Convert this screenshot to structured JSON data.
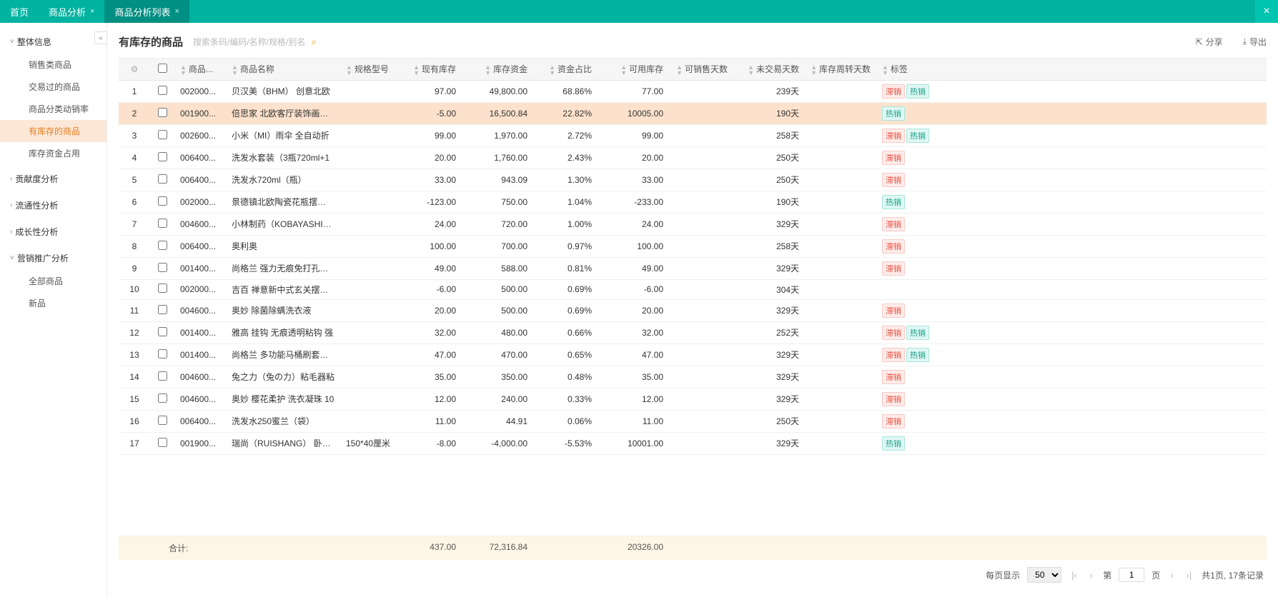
{
  "tabs": {
    "home": "首页",
    "item1": "商品分析",
    "item2": "商品分析列表"
  },
  "sidebar": {
    "groups": [
      {
        "title": "整体信息",
        "open": true,
        "items": [
          "销售类商品",
          "交易过的商品",
          "商品分类动销率",
          "有库存的商品",
          "库存资金占用"
        ],
        "activeIndex": 3
      },
      {
        "title": "贡献度分析",
        "open": false,
        "items": []
      },
      {
        "title": "流通性分析",
        "open": false,
        "items": []
      },
      {
        "title": "成长性分析",
        "open": false,
        "items": []
      },
      {
        "title": "营销推广分析",
        "open": true,
        "items": [
          "全部商品",
          "新品"
        ],
        "activeIndex": -1
      }
    ]
  },
  "header": {
    "title": "有库存的商品",
    "searchPlaceholder": "搜索条码/编码/名称/规格/别名",
    "share": "分享",
    "export": "导出"
  },
  "columns": [
    "",
    "",
    "商品...",
    "商品名称",
    "规格型号",
    "现有库存",
    "库存资金",
    "资金占比",
    "可用库存",
    "可销售天数",
    "未交易天数",
    "库存周转天数",
    "标签"
  ],
  "rows": [
    {
      "idx": 1,
      "code": "002000...",
      "name": "贝汉美（BHM） 创意北欧",
      "spec": "",
      "stock": "97.00",
      "fund": "49,800.00",
      "ratio": "68.86%",
      "avail": "77.00",
      "sellDays": "",
      "noTrade": "239天",
      "turn": "",
      "tags": [
        "滞销",
        "热销"
      ],
      "hl": false
    },
    {
      "idx": 2,
      "code": "001900...",
      "name": "倍思家 北欧客厅装饰画卧室",
      "spec": "",
      "stock": "-5.00",
      "fund": "16,500.84",
      "ratio": "22.82%",
      "avail": "10005.00",
      "sellDays": "",
      "noTrade": "190天",
      "turn": "",
      "tags": [
        "热销"
      ],
      "hl": true
    },
    {
      "idx": 3,
      "code": "002600...",
      "name": "小米（MI）雨伞 全自动折",
      "spec": "",
      "stock": "99.00",
      "fund": "1,970.00",
      "ratio": "2.72%",
      "avail": "99.00",
      "sellDays": "",
      "noTrade": "258天",
      "turn": "",
      "tags": [
        "滞销",
        "热销"
      ],
      "hl": false
    },
    {
      "idx": 4,
      "code": "006400...",
      "name": "洗发水套装（3瓶720ml+1",
      "spec": "",
      "stock": "20.00",
      "fund": "1,760.00",
      "ratio": "2.43%",
      "avail": "20.00",
      "sellDays": "",
      "noTrade": "250天",
      "turn": "",
      "tags": [
        "滞销"
      ],
      "hl": false
    },
    {
      "idx": 5,
      "code": "006400...",
      "name": "洗发水720ml（瓶）",
      "spec": "",
      "stock": "33.00",
      "fund": "943.09",
      "ratio": "1.30%",
      "avail": "33.00",
      "sellDays": "",
      "noTrade": "250天",
      "turn": "",
      "tags": [
        "滞销"
      ],
      "hl": false
    },
    {
      "idx": 6,
      "code": "002000...",
      "name": "景德镇北欧陶瓷花瓶摆件 优",
      "spec": "",
      "stock": "-123.00",
      "fund": "750.00",
      "ratio": "1.04%",
      "avail": "-233.00",
      "sellDays": "",
      "noTrade": "190天",
      "turn": "",
      "tags": [
        "热销"
      ],
      "hl": false
    },
    {
      "idx": 7,
      "code": "004600...",
      "name": "小林制药（KOBAYASHI）E",
      "spec": "",
      "stock": "24.00",
      "fund": "720.00",
      "ratio": "1.00%",
      "avail": "24.00",
      "sellDays": "",
      "noTrade": "329天",
      "turn": "",
      "tags": [
        "滞销"
      ],
      "hl": false
    },
    {
      "idx": 8,
      "code": "006400...",
      "name": "奥利奥",
      "spec": "",
      "stock": "100.00",
      "fund": "700.00",
      "ratio": "0.97%",
      "avail": "100.00",
      "sellDays": "",
      "noTrade": "258天",
      "turn": "",
      "tags": [
        "滞销"
      ],
      "hl": false
    },
    {
      "idx": 9,
      "code": "001400...",
      "name": "尚格兰 强力无痕免打孔浴室",
      "spec": "",
      "stock": "49.00",
      "fund": "588.00",
      "ratio": "0.81%",
      "avail": "49.00",
      "sellDays": "",
      "noTrade": "329天",
      "turn": "",
      "tags": [
        "滞销"
      ],
      "hl": false
    },
    {
      "idx": 10,
      "code": "002000...",
      "name": "吉百 禅意新中式玄关摆件客",
      "spec": "",
      "stock": "-6.00",
      "fund": "500.00",
      "ratio": "0.69%",
      "avail": "-6.00",
      "sellDays": "",
      "noTrade": "304天",
      "turn": "",
      "tags": [],
      "hl": false
    },
    {
      "idx": 11,
      "code": "004600...",
      "name": "奥妙 除菌除螨洗衣液",
      "spec": "",
      "stock": "20.00",
      "fund": "500.00",
      "ratio": "0.69%",
      "avail": "20.00",
      "sellDays": "",
      "noTrade": "329天",
      "turn": "",
      "tags": [
        "滞销"
      ],
      "hl": false
    },
    {
      "idx": 12,
      "code": "001400...",
      "name": "雅高 挂钩 无痕透明粘钩 强",
      "spec": "",
      "stock": "32.00",
      "fund": "480.00",
      "ratio": "0.66%",
      "avail": "32.00",
      "sellDays": "",
      "noTrade": "252天",
      "turn": "",
      "tags": [
        "滞销",
        "热销"
      ],
      "hl": false
    },
    {
      "idx": 13,
      "code": "001400...",
      "name": "尚格兰 多功能马桶刷套装 带",
      "spec": "",
      "stock": "47.00",
      "fund": "470.00",
      "ratio": "0.65%",
      "avail": "47.00",
      "sellDays": "",
      "noTrade": "329天",
      "turn": "",
      "tags": [
        "滞销",
        "热销"
      ],
      "hl": false
    },
    {
      "idx": 14,
      "code": "004600...",
      "name": "兔之力（兔の力）粘毛器粘",
      "spec": "",
      "stock": "35.00",
      "fund": "350.00",
      "ratio": "0.48%",
      "avail": "35.00",
      "sellDays": "",
      "noTrade": "329天",
      "turn": "",
      "tags": [
        "滞销"
      ],
      "hl": false
    },
    {
      "idx": 15,
      "code": "004600...",
      "name": "奥妙 樱花柔护 洗衣凝珠 10",
      "spec": "",
      "stock": "12.00",
      "fund": "240.00",
      "ratio": "0.33%",
      "avail": "12.00",
      "sellDays": "",
      "noTrade": "329天",
      "turn": "",
      "tags": [
        "滞销"
      ],
      "hl": false
    },
    {
      "idx": 16,
      "code": "006400...",
      "name": "洗发水250蜜兰（袋）",
      "spec": "",
      "stock": "11.00",
      "fund": "44.91",
      "ratio": "0.06%",
      "avail": "11.00",
      "sellDays": "",
      "noTrade": "250天",
      "turn": "",
      "tags": [
        "滞销"
      ],
      "hl": false
    },
    {
      "idx": 17,
      "code": "001900...",
      "name": "瑞尚（RUISHANG） 卧室地",
      "spec": "150*40厘米",
      "stock": "-8.00",
      "fund": "-4,000.00",
      "ratio": "-5.53%",
      "avail": "10001.00",
      "sellDays": "",
      "noTrade": "329天",
      "turn": "",
      "tags": [
        "热销"
      ],
      "hl": false
    }
  ],
  "totals": {
    "label": "合计:",
    "stock": "437.00",
    "fund": "72,316.84",
    "avail": "20326.00"
  },
  "pagination": {
    "perPageLabel": "每页显示",
    "perPage": "50",
    "pagePrefix": "第",
    "page": "1",
    "pageSuffix": "页",
    "summary": "共1页, 17条记录"
  },
  "tagStyles": {
    "滞销": "tag-orange",
    "热销": "tag-teal"
  }
}
